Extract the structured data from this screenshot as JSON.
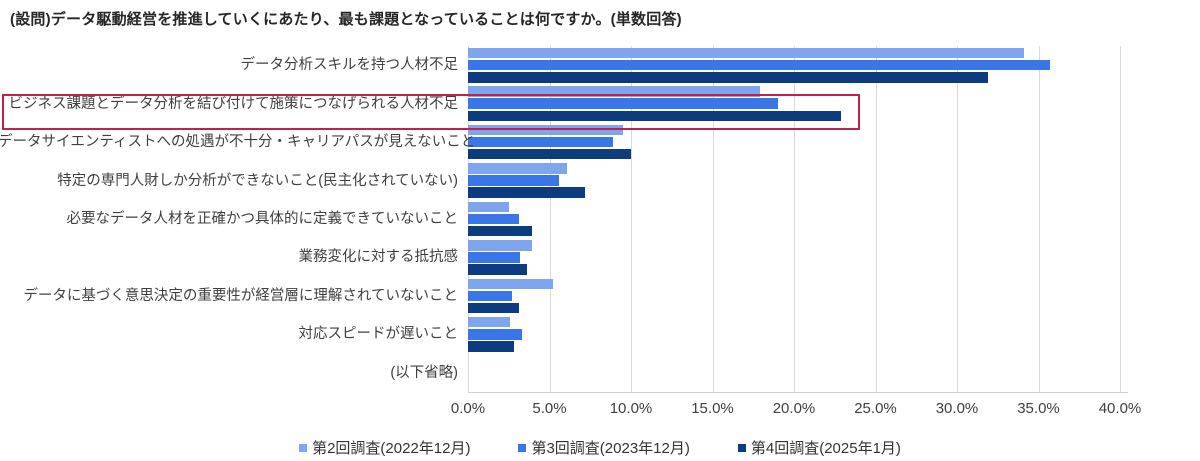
{
  "title": "(設問)データ駆動経営を推進していくにあたり、最も課題となっていることは何ですか。(単数回答)",
  "colors": {
    "series_2022": "#7fa5ee",
    "series_2023": "#3b76e9",
    "series_2025": "#0c3b80",
    "highlight_box": "#c0204e",
    "gridline": "#d9d9d9",
    "axis_text": "#404040",
    "label_text": "#404040",
    "title_text": "#262626"
  },
  "chart_data": {
    "type": "bar",
    "orientation": "horizontal",
    "title": "(設問)データ駆動経営を推進していくにあたり、最も課題となっていることは何ですか。(単数回答)",
    "categories": [
      "データ分析スキルを持つ人材不足",
      "ビジネス課題とデータ分析を結び付けて施策につなげられる人材不足",
      "データサイエンティストへの処遇が不十分・キャリアパスが見えないこと",
      "特定の専門人財しか分析ができないこと(民主化されていない)",
      "必要なデータ人材を正確かつ具体的に定義できていないこと",
      "業務変化に対する抵抗感",
      "データに基づく意思決定の重要性が経営層に理解されていないこと",
      "対応スピードが遅いこと",
      "(以下省略)"
    ],
    "series": [
      {
        "name": "第2回調査(2022年12月)",
        "color_key": "series_2022",
        "values": [
          34.1,
          17.9,
          9.5,
          6.1,
          2.5,
          3.9,
          5.2,
          2.6,
          null
        ]
      },
      {
        "name": "第3回調査(2023年12月)",
        "color_key": "series_2023",
        "values": [
          35.7,
          19.0,
          8.9,
          5.6,
          3.1,
          3.2,
          2.7,
          3.3,
          null
        ]
      },
      {
        "name": "第4回調査(2025年1月)",
        "color_key": "series_2025",
        "values": [
          31.9,
          22.9,
          10.0,
          7.2,
          3.9,
          3.6,
          3.1,
          2.8,
          null
        ]
      }
    ],
    "x_ticks": [
      "0.0%",
      "5.0%",
      "10.0%",
      "15.0%",
      "20.0%",
      "25.0%",
      "30.0%",
      "35.0%",
      "40.0%"
    ],
    "xlim": [
      0,
      40
    ],
    "grid": true,
    "legend_position": "bottom",
    "highlighted_category_index": 1
  }
}
